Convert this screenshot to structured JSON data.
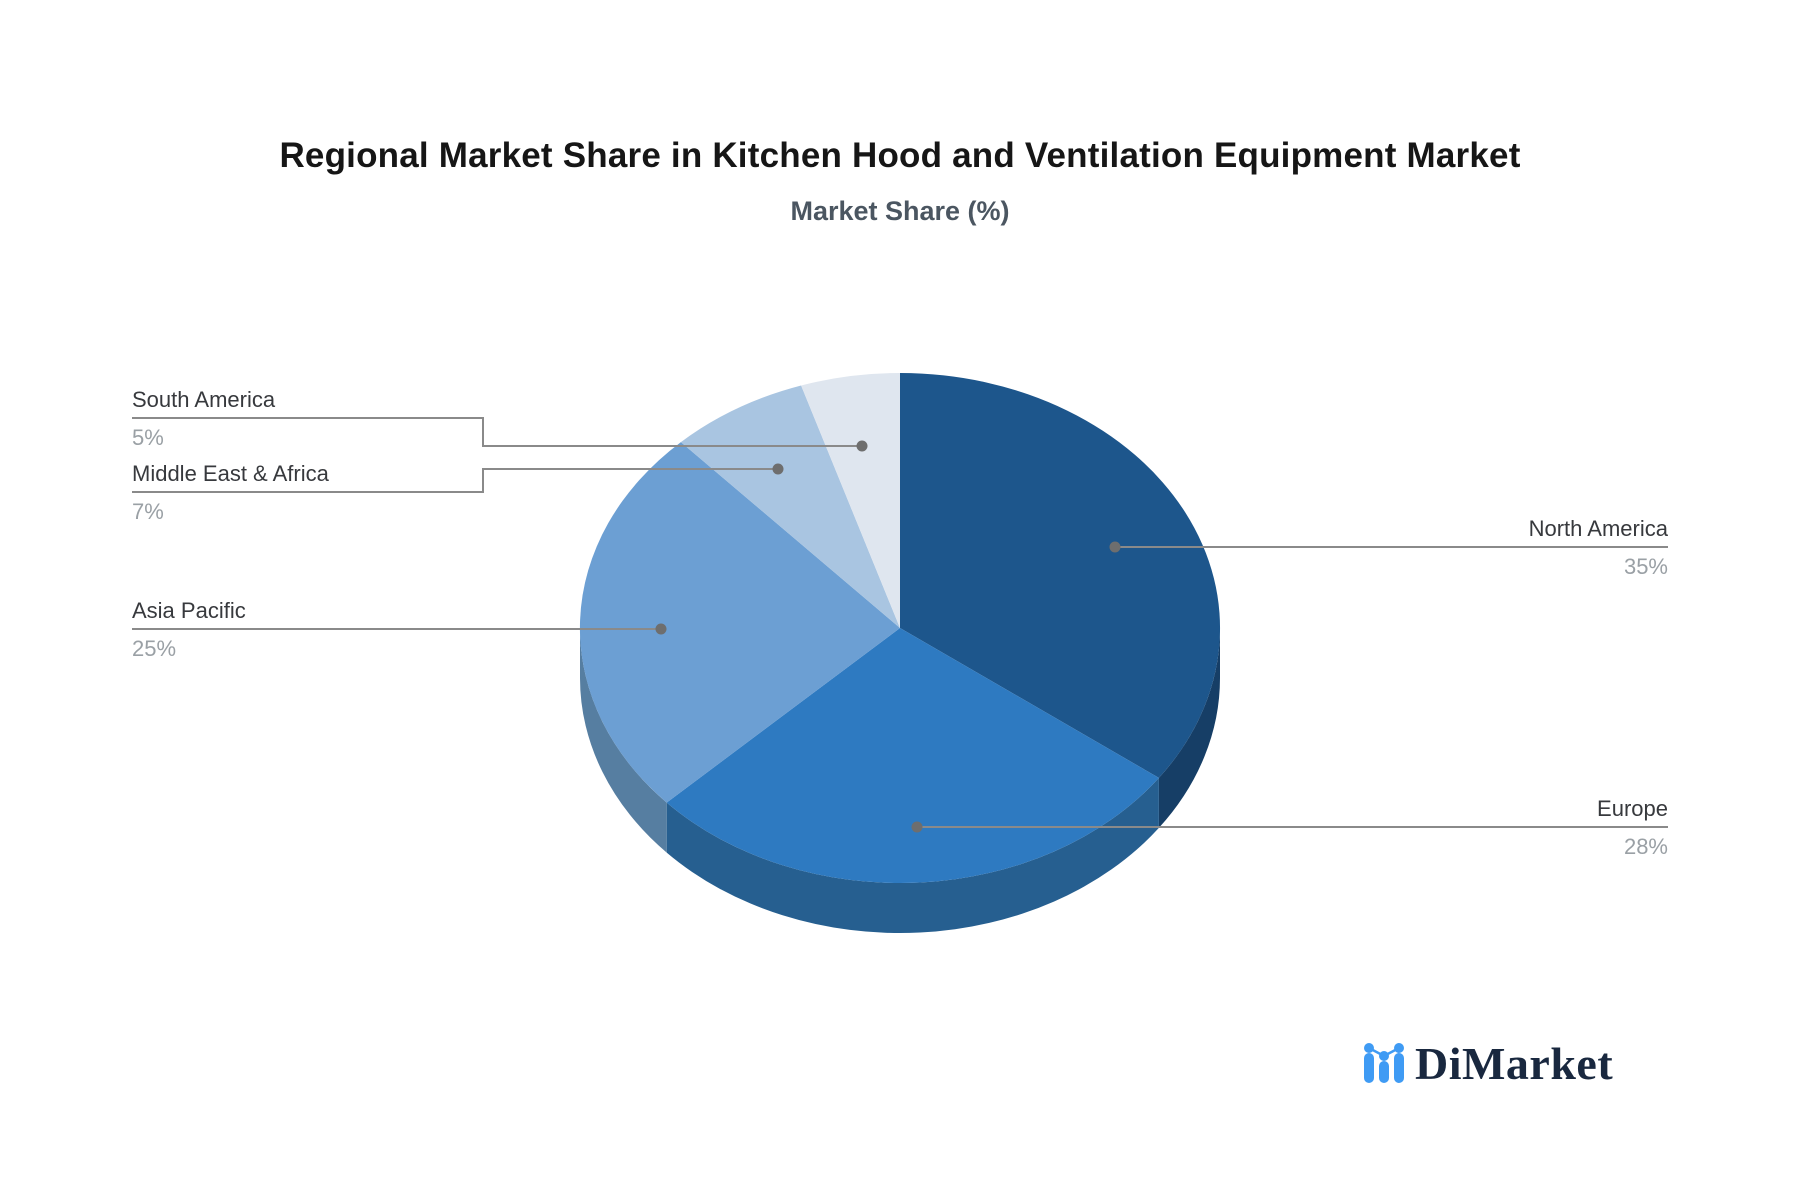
{
  "title": "Regional Market Share in Kitchen Hood and Ventilation Equipment Market",
  "subtitle": "Market Share (%)",
  "chart_data": {
    "type": "pie",
    "style": "3d",
    "title": "Regional Market Share in Kitchen Hood and Ventilation Equipment Market",
    "subtitle": "Market Share (%)",
    "unit": "%",
    "categories": [
      "North America",
      "Europe",
      "Asia Pacific",
      "Middle East & Africa",
      "South America"
    ],
    "values": [
      35,
      28,
      25,
      7,
      5
    ],
    "value_labels": [
      "35%",
      "28%",
      "25%",
      "7%",
      "5%"
    ],
    "colors": [
      "#1d568c",
      "#2e7ac1",
      "#6c9fd3",
      "#a9c5e1",
      "#dfe6ef"
    ],
    "side_colors": [
      "#163e66",
      "#265f90",
      "#567ea1",
      "#8fadd0",
      "#c3cedd"
    ],
    "start_angle_deg": 0,
    "direction": "clockwise",
    "legend": "none",
    "label_style": "leader-lines"
  },
  "branding": {
    "logo_text": "DiMarket",
    "logo_icon": "bar-line-chart-icon",
    "accent_color": "#3f9bf4",
    "text_color": "#19283f"
  },
  "colors": {
    "background": "#ffffff",
    "title": "#161616",
    "subtitle": "#4b5661",
    "label": "#37393d",
    "value": "#9aa0a5",
    "leader_line": "#8a8a8a",
    "leader_dot": "#6e6e6e"
  }
}
